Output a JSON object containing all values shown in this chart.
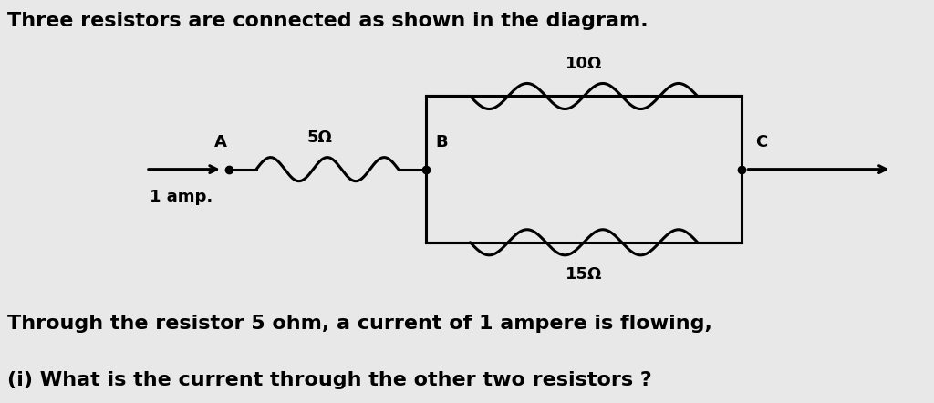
{
  "title": "Three resistors are connected as shown in the diagram.",
  "line1": "Through the resistor 5 ohm, a current of 1 ampere is flowing,",
  "line2": "(i) What is the current through the other two resistors ?",
  "bg_color": "#b8cfd8",
  "fig_bg": "#e8e8e8",
  "title_fontsize": 16,
  "text_fontsize": 16,
  "label_A": "A",
  "label_B": "B",
  "label_C": "C",
  "label_1amp": "1 amp.",
  "label_5ohm": "5Ω",
  "label_10ohm": "10Ω",
  "label_15ohm": "15Ω"
}
